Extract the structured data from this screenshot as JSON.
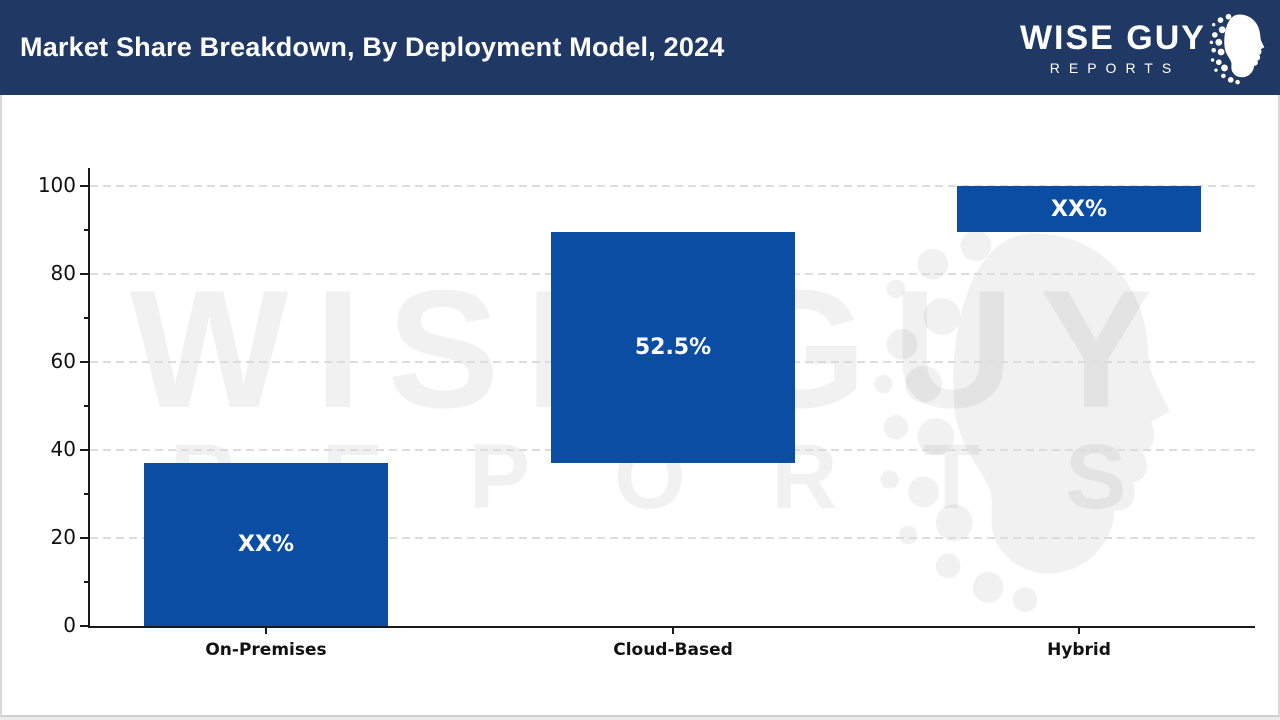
{
  "header": {
    "title": "Market Share Breakdown, By Deployment Model, 2024",
    "logo": {
      "wordmark": "WISE GUY",
      "subtext": "REPORTS"
    }
  },
  "watermark": {
    "line1": "WISE GUY",
    "line2": "R E P O R T S"
  },
  "chart_data": {
    "type": "bar",
    "subtype": "stacked-breakdown-waterfall",
    "title": "Market Share Breakdown, By Deployment Model, 2024",
    "categories": [
      "On-Premises",
      "Cloud-Based",
      "Hybrid"
    ],
    "segments": [
      {
        "category": "On-Premises",
        "start": 0,
        "end": 37,
        "value": 37,
        "label": "XX%"
      },
      {
        "category": "Cloud-Based",
        "start": 37,
        "end": 89.5,
        "value": 52.5,
        "label": "52.5%"
      },
      {
        "category": "Hybrid",
        "start": 89.5,
        "end": 100,
        "value": 10.5,
        "label": "XX%"
      }
    ],
    "yticks": [
      0,
      20,
      40,
      60,
      80,
      100
    ],
    "minor_yticks": [
      10,
      30,
      50,
      70,
      90
    ],
    "ylim": [
      0,
      104
    ],
    "xlabel": "",
    "ylabel": "",
    "grid": "horizontal-dashed",
    "legend": "none",
    "colors": {
      "bar": "#0b4da2",
      "bar_label": "#ffffff",
      "grid": "#dcdcdc",
      "axis": "#1a1a1a",
      "header_bg": "#1f3864",
      "header_text": "#ffffff"
    }
  }
}
